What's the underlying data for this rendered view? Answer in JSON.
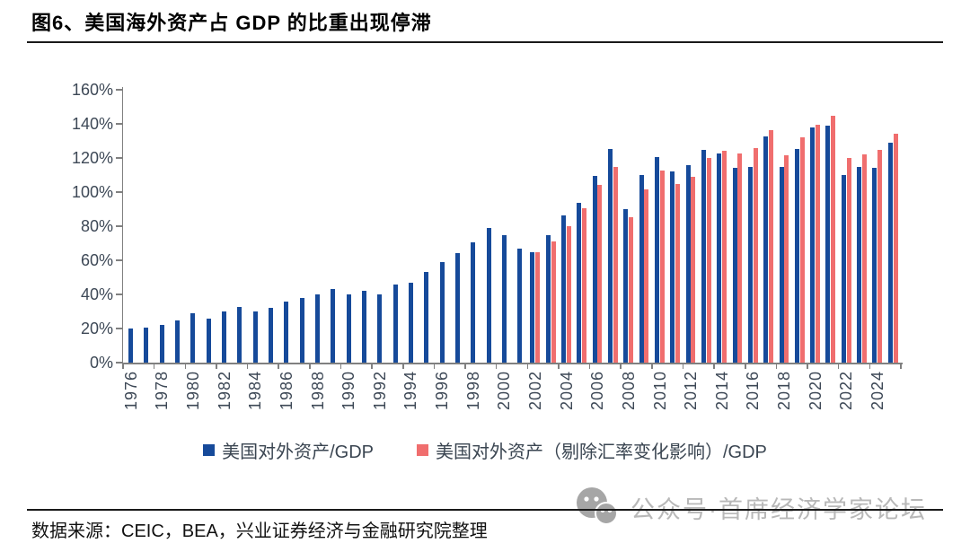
{
  "header": {
    "title": "图6、美国海外资产占 GDP 的比重出现停滞"
  },
  "chart_data": {
    "type": "bar",
    "title": "图6、美国海外资产占 GDP 的比重出现停滞",
    "xlabel": "",
    "ylabel": "",
    "ylim": [
      0,
      160
    ],
    "ytick_step": 20,
    "ytick_suffix": "%",
    "xtick_label_step": 2,
    "grid": false,
    "legend_position": "bottom",
    "categories": [
      1976,
      1977,
      1978,
      1979,
      1980,
      1981,
      1982,
      1983,
      1984,
      1985,
      1986,
      1987,
      1988,
      1989,
      1990,
      1991,
      1992,
      1993,
      1994,
      1995,
      1996,
      1997,
      1998,
      1999,
      2000,
      2001,
      2002,
      2003,
      2004,
      2005,
      2006,
      2007,
      2008,
      2009,
      2010,
      2011,
      2012,
      2013,
      2014,
      2015,
      2016,
      2017,
      2018,
      2019,
      2020,
      2021,
      2022,
      2023,
      2024,
      2025
    ],
    "series": [
      {
        "name": "美国对外资产/GDP",
        "color": "#164A9A",
        "values": [
          20,
          20.5,
          22,
          25,
          29,
          26,
          30,
          32.5,
          30,
          32,
          36,
          38,
          40,
          43,
          40,
          42,
          40,
          46,
          47,
          53,
          59,
          64,
          70.5,
          79,
          74.5,
          67,
          64.5,
          75,
          86.5,
          93.5,
          109.5,
          125.5,
          90,
          110,
          120.5,
          112,
          116,
          125,
          122.5,
          114,
          115,
          132.5,
          114.5,
          125.5,
          138,
          139,
          110,
          114.5,
          114,
          129
        ]
      },
      {
        "name": "美国对外资产（剔除汇率变化影响）/GDP",
        "color": "#F06E6E",
        "values": [
          null,
          null,
          null,
          null,
          null,
          null,
          null,
          null,
          null,
          null,
          null,
          null,
          null,
          null,
          null,
          null,
          null,
          null,
          null,
          null,
          null,
          null,
          null,
          null,
          null,
          null,
          64.5,
          71,
          80,
          90.5,
          104,
          115,
          85.5,
          101.5,
          112.5,
          105,
          109,
          120,
          124,
          122.5,
          126,
          136.5,
          121.5,
          132,
          139.5,
          144.5,
          120,
          122,
          125,
          134
        ]
      }
    ]
  },
  "footer": {
    "source": "数据来源：CEIC，BEA，兴业证券经济与金融研究院整理"
  },
  "watermark": {
    "text": "公众号·首席经济学家论坛"
  }
}
